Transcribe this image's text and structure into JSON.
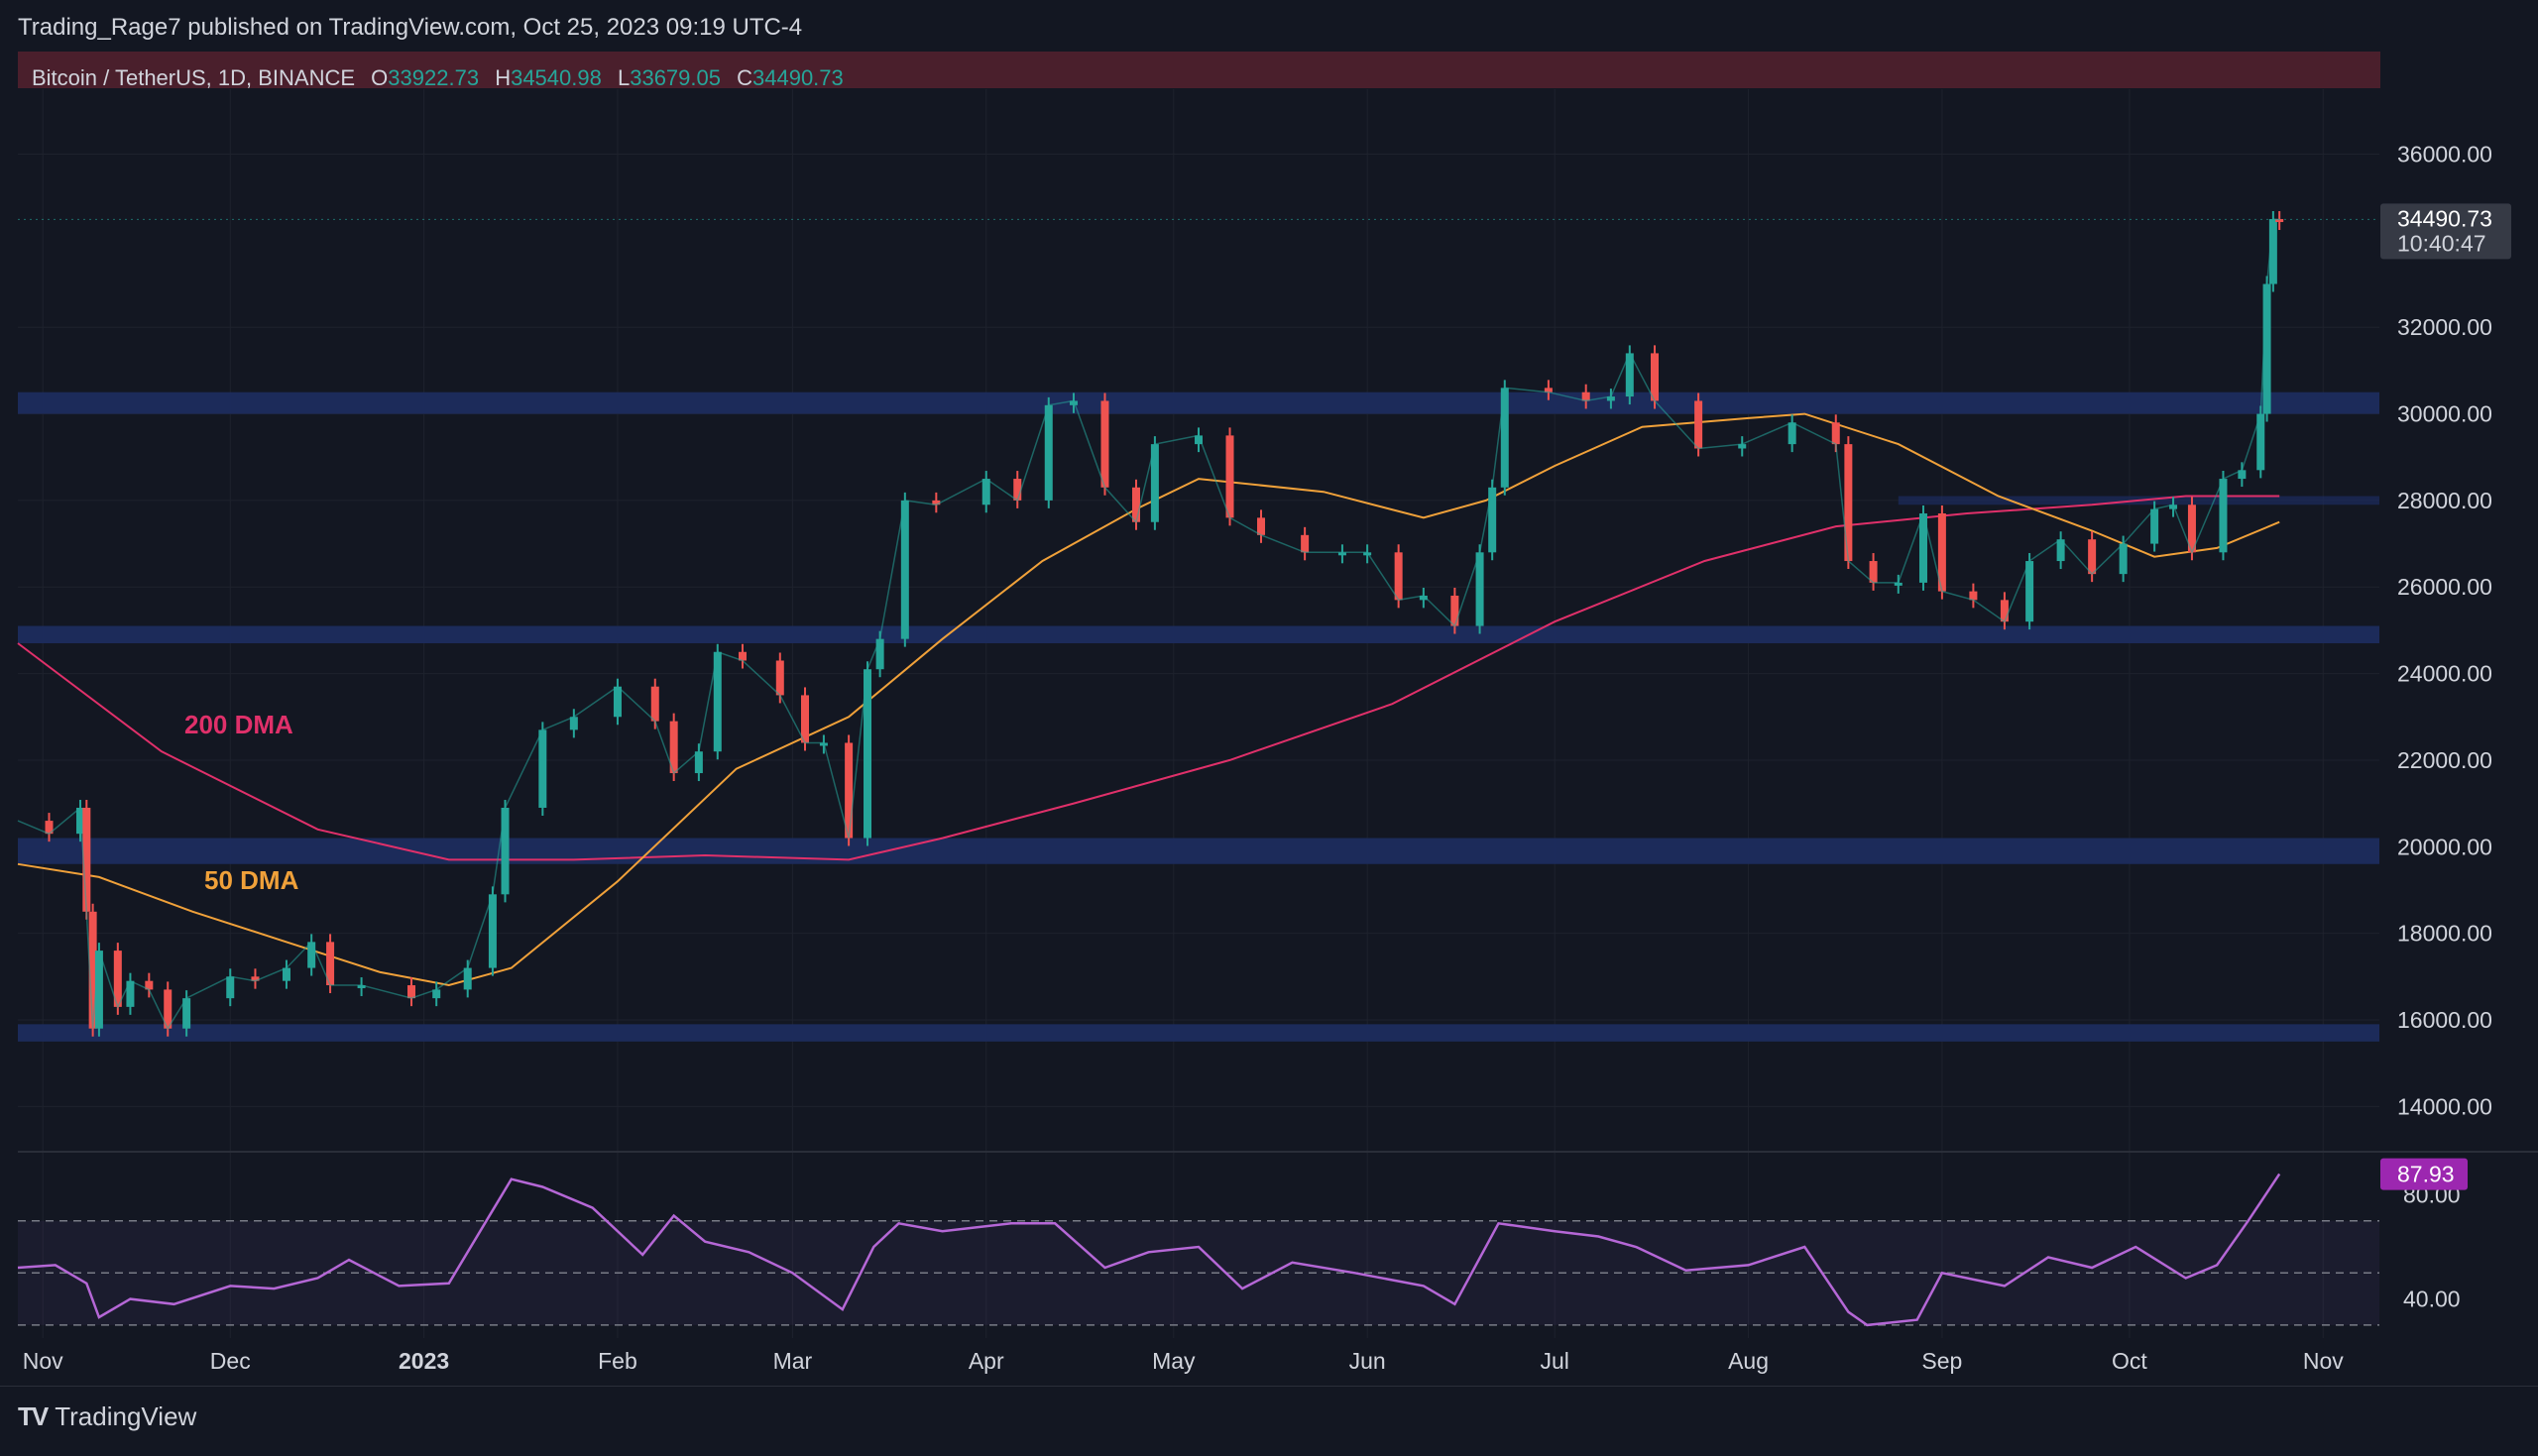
{
  "header": {
    "published_by": "Trading_Rage7 published on TradingView.com, Oct 25, 2023 09:19 UTC-4"
  },
  "symbol": {
    "name": "Bitcoin / TetherUS, 1D, BINANCE",
    "open_label": "O",
    "open": "33922.73",
    "high_label": "H",
    "high": "34540.98",
    "low_label": "L",
    "low": "33679.05",
    "close_label": "C",
    "close": "34490.73"
  },
  "price_tag": {
    "price": "34490.73",
    "countdown": "10:40:47"
  },
  "rsi_tag": "87.93",
  "footer": {
    "brand": "TradingView",
    "logo_text": "TV"
  },
  "colors": {
    "background": "#131722",
    "up": "#26a69a",
    "down": "#ef5350",
    "ma50": "#f0a13a",
    "ma200": "#e0306a",
    "zone": "#1c2c5e",
    "rsi": "#b567d6",
    "header_zone": "#4a1f2c",
    "grid": "#1e222d"
  },
  "chart_data": {
    "type": "line",
    "title": "Bitcoin / TetherUS, 1D, BINANCE",
    "main_panel": {
      "y_ticks": [
        "14000.00",
        "16000.00",
        "18000.00",
        "20000.00",
        "22000.00",
        "24000.00",
        "26000.00",
        "28000.00",
        "30000.00",
        "32000.00",
        "36000.00"
      ],
      "ylim": [
        13000,
        37500
      ],
      "x_ticks": [
        "Nov",
        "Dec",
        "2023",
        "Feb",
        "Mar",
        "Apr",
        "May",
        "Jun",
        "Jul",
        "Aug",
        "Sep",
        "Oct",
        "Nov"
      ],
      "x_tick_dates": [
        "2022-11-01",
        "2022-12-01",
        "2023-01-01",
        "2023-02-01",
        "2023-03-01",
        "2023-04-01",
        "2023-05-01",
        "2023-06-01",
        "2023-07-01",
        "2023-08-01",
        "2023-09-01",
        "2023-10-01",
        "2023-11-01"
      ],
      "xlim": [
        "2022-10-28",
        "2023-11-10"
      ],
      "price_series": {
        "dates": [
          "2022-10-28",
          "2022-11-02",
          "2022-11-07",
          "2022-11-08",
          "2022-11-09",
          "2022-11-10",
          "2022-11-13",
          "2022-11-15",
          "2022-11-18",
          "2022-11-21",
          "2022-11-24",
          "2022-12-01",
          "2022-12-05",
          "2022-12-10",
          "2022-12-14",
          "2022-12-17",
          "2022-12-22",
          "2022-12-30",
          "2023-01-03",
          "2023-01-08",
          "2023-01-12",
          "2023-01-14",
          "2023-01-20",
          "2023-01-25",
          "2023-02-01",
          "2023-02-07",
          "2023-02-10",
          "2023-02-14",
          "2023-02-17",
          "2023-02-21",
          "2023-02-27",
          "2023-03-03",
          "2023-03-06",
          "2023-03-10",
          "2023-03-13",
          "2023-03-15",
          "2023-03-19",
          "2023-03-24",
          "2023-04-01",
          "2023-04-06",
          "2023-04-11",
          "2023-04-15",
          "2023-04-20",
          "2023-04-25",
          "2023-04-28",
          "2023-05-05",
          "2023-05-10",
          "2023-05-15",
          "2023-05-22",
          "2023-05-28",
          "2023-06-01",
          "2023-06-06",
          "2023-06-10",
          "2023-06-15",
          "2023-06-19",
          "2023-06-21",
          "2023-06-23",
          "2023-06-30",
          "2023-07-06",
          "2023-07-10",
          "2023-07-13",
          "2023-07-17",
          "2023-07-24",
          "2023-07-31",
          "2023-08-08",
          "2023-08-15",
          "2023-08-17",
          "2023-08-21",
          "2023-08-25",
          "2023-08-29",
          "2023-09-01",
          "2023-09-06",
          "2023-09-11",
          "2023-09-15",
          "2023-09-20",
          "2023-09-25",
          "2023-09-30",
          "2023-10-05",
          "2023-10-08",
          "2023-10-11",
          "2023-10-16",
          "2023-10-19",
          "2023-10-22",
          "2023-10-23",
          "2023-10-24",
          "2023-10-25"
        ],
        "close": [
          20600,
          20300,
          20900,
          18500,
          15800,
          17600,
          16300,
          16900,
          16700,
          15800,
          16500,
          17000,
          16900,
          17200,
          17800,
          16800,
          16800,
          16500,
          16700,
          17200,
          18900,
          20900,
          22700,
          23000,
          23700,
          22900,
          21700,
          22200,
          24500,
          24300,
          23500,
          22400,
          22400,
          20200,
          24100,
          24800,
          28000,
          27900,
          28500,
          28000,
          30200,
          30300,
          28300,
          27500,
          29300,
          29500,
          27600,
          27200,
          26800,
          26800,
          26800,
          25700,
          25800,
          25100,
          26800,
          28300,
          30600,
          30500,
          30300,
          30400,
          31400,
          30300,
          29200,
          29300,
          29800,
          29300,
          26600,
          26100,
          26100,
          27700,
          25900,
          25700,
          25200,
          26600,
          27100,
          26300,
          27000,
          27800,
          27900,
          26800,
          28500,
          28700,
          30000,
          33000,
          34500,
          34490
        ]
      },
      "ma50": {
        "name": "50 DMA",
        "dates": [
          "2022-10-28",
          "2022-11-10",
          "2022-11-25",
          "2022-12-10",
          "2022-12-25",
          "2023-01-05",
          "2023-01-15",
          "2023-02-01",
          "2023-02-20",
          "2023-03-10",
          "2023-03-25",
          "2023-04-10",
          "2023-04-25",
          "2023-05-05",
          "2023-05-25",
          "2023-06-10",
          "2023-06-20",
          "2023-07-01",
          "2023-07-15",
          "2023-08-01",
          "2023-08-10",
          "2023-08-25",
          "2023-09-10",
          "2023-09-25",
          "2023-10-05",
          "2023-10-15",
          "2023-10-25"
        ],
        "values": [
          19600,
          19300,
          18500,
          17800,
          17100,
          16800,
          17200,
          19200,
          21800,
          23000,
          24800,
          26600,
          27800,
          28500,
          28200,
          27600,
          28000,
          28800,
          29700,
          29900,
          30000,
          29300,
          28100,
          27300,
          26700,
          26900,
          27500
        ]
      },
      "ma200": {
        "name": "200 DMA",
        "dates": [
          "2022-10-28",
          "2022-11-20",
          "2022-12-15",
          "2023-01-05",
          "2023-01-25",
          "2023-02-15",
          "2023-03-10",
          "2023-03-25",
          "2023-04-15",
          "2023-05-10",
          "2023-06-05",
          "2023-07-01",
          "2023-07-25",
          "2023-08-15",
          "2023-09-05",
          "2023-09-25",
          "2023-10-10",
          "2023-10-25"
        ],
        "values": [
          24700,
          22200,
          20400,
          19700,
          19700,
          19800,
          19700,
          20200,
          21000,
          22000,
          23300,
          25200,
          26600,
          27400,
          27700,
          27900,
          28100,
          28100
        ]
      },
      "zones": [
        {
          "from": 30000,
          "to": 30500
        },
        {
          "from": 24700,
          "to": 25100
        },
        {
          "from": 19600,
          "to": 20200
        },
        {
          "from": 15500,
          "to": 15900
        },
        {
          "from": 27900,
          "to": 28100
        }
      ],
      "labels": [
        "200 DMA",
        "50 DMA"
      ]
    },
    "rsi_panel": {
      "y_ticks": [
        "40.00",
        "80.00"
      ],
      "ylim": [
        25,
        95
      ],
      "levels": [
        30,
        50,
        70
      ],
      "dates": [
        "2022-10-28",
        "2022-11-03",
        "2022-11-08",
        "2022-11-10",
        "2022-11-15",
        "2022-11-22",
        "2022-12-01",
        "2022-12-08",
        "2022-12-15",
        "2022-12-20",
        "2022-12-28",
        "2023-01-05",
        "2023-01-12",
        "2023-01-15",
        "2023-01-20",
        "2023-01-28",
        "2023-02-05",
        "2023-02-10",
        "2023-02-15",
        "2023-02-22",
        "2023-03-01",
        "2023-03-09",
        "2023-03-14",
        "2023-03-18",
        "2023-03-25",
        "2023-04-05",
        "2023-04-12",
        "2023-04-20",
        "2023-04-27",
        "2023-05-05",
        "2023-05-12",
        "2023-05-20",
        "2023-05-30",
        "2023-06-10",
        "2023-06-15",
        "2023-06-22",
        "2023-07-01",
        "2023-07-08",
        "2023-07-14",
        "2023-07-22",
        "2023-08-01",
        "2023-08-10",
        "2023-08-17",
        "2023-08-20",
        "2023-08-28",
        "2023-09-01",
        "2023-09-11",
        "2023-09-18",
        "2023-09-25",
        "2023-10-02",
        "2023-10-10",
        "2023-10-15",
        "2023-10-20",
        "2023-10-25"
      ],
      "values": [
        52,
        53,
        46,
        33,
        40,
        38,
        45,
        44,
        48,
        55,
        45,
        46,
        74,
        86,
        83,
        75,
        57,
        72,
        62,
        58,
        50,
        36,
        60,
        69,
        66,
        69,
        69,
        52,
        58,
        60,
        44,
        54,
        50,
        45,
        38,
        69,
        66,
        64,
        60,
        51,
        53,
        60,
        35,
        30,
        32,
        50,
        45,
        56,
        52,
        60,
        48,
        53,
        70,
        88
      ]
    }
  }
}
